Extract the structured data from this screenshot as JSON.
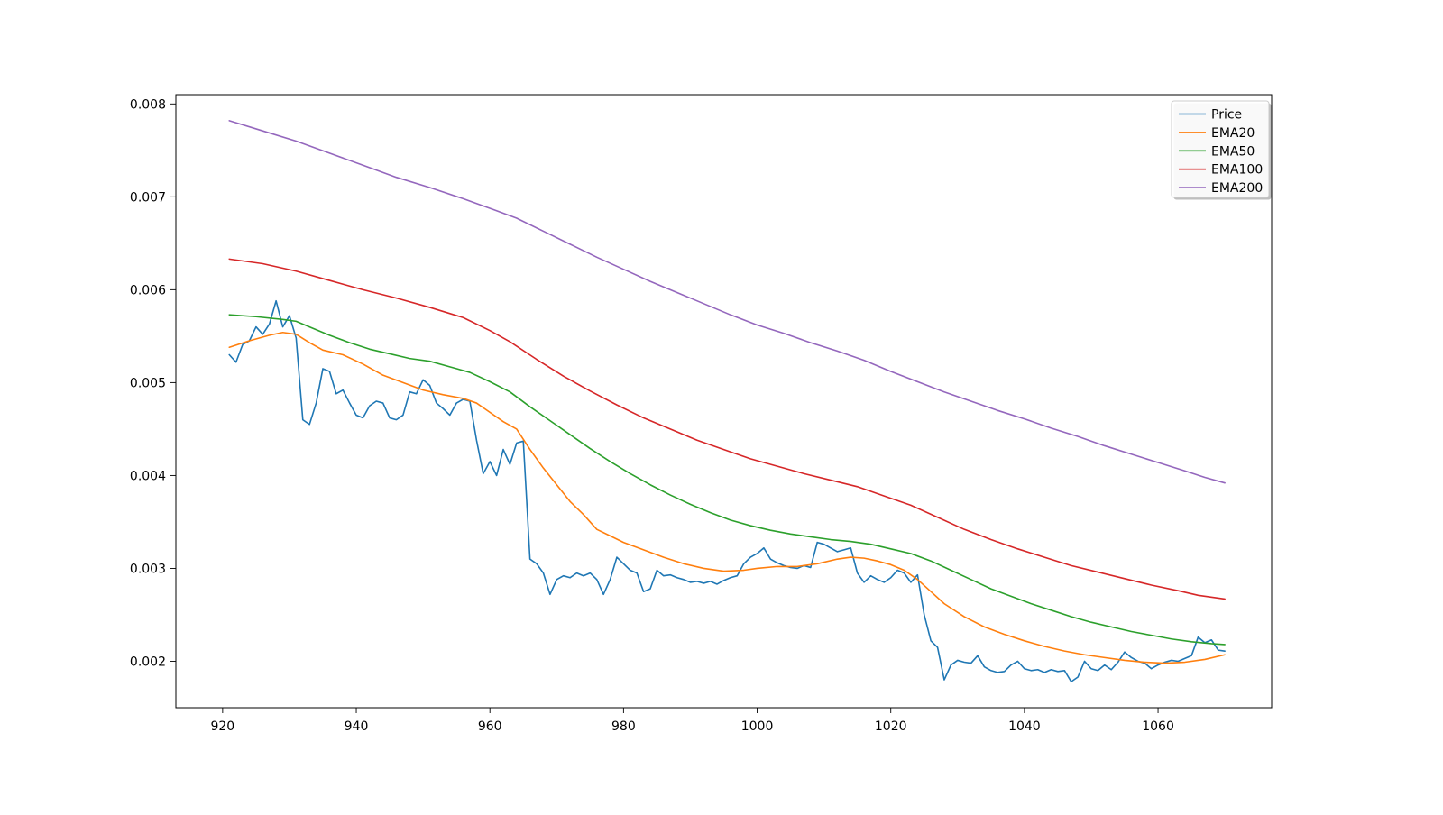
{
  "figure": {
    "background": "#ffffff"
  },
  "chart_data": {
    "type": "line",
    "title": "",
    "xlabel": "",
    "ylabel": "",
    "xlim": [
      913,
      1077
    ],
    "ylim": [
      0.0015,
      0.0081
    ],
    "xticks": [
      920,
      940,
      960,
      980,
      1000,
      1020,
      1040,
      1060
    ],
    "yticks": [
      0.002,
      0.003,
      0.004,
      0.005,
      0.006,
      0.007,
      0.008
    ],
    "y_tick_decimals": 3,
    "grid": false,
    "legend": {
      "position": "upper right",
      "labels": [
        "Price",
        "EMA20",
        "EMA50",
        "EMA100",
        "EMA200"
      ]
    },
    "axis_color": "#000000",
    "series": [
      {
        "name": "Price",
        "color": "#1f77b4",
        "x_start": 921,
        "x_step": 1,
        "y": [
          0.0053,
          0.00522,
          0.00541,
          0.00545,
          0.0056,
          0.00552,
          0.00563,
          0.00588,
          0.0056,
          0.00572,
          0.00548,
          0.0046,
          0.00455,
          0.00478,
          0.00515,
          0.00512,
          0.00488,
          0.00492,
          0.00478,
          0.00465,
          0.00462,
          0.00475,
          0.0048,
          0.00478,
          0.00462,
          0.0046,
          0.00465,
          0.0049,
          0.00488,
          0.00503,
          0.00497,
          0.00478,
          0.00472,
          0.00465,
          0.00478,
          0.00482,
          0.0048,
          0.00438,
          0.00402,
          0.00415,
          0.004,
          0.00428,
          0.00412,
          0.00435,
          0.00437,
          0.0031,
          0.00305,
          0.00295,
          0.00272,
          0.00288,
          0.00292,
          0.0029,
          0.00295,
          0.00292,
          0.00295,
          0.00288,
          0.00272,
          0.00288,
          0.00312,
          0.00305,
          0.00298,
          0.00295,
          0.00275,
          0.00278,
          0.00298,
          0.00292,
          0.00293,
          0.0029,
          0.00288,
          0.00285,
          0.00286,
          0.00284,
          0.00286,
          0.00283,
          0.00287,
          0.0029,
          0.00292,
          0.00305,
          0.00312,
          0.00316,
          0.00322,
          0.0031,
          0.00306,
          0.00303,
          0.00301,
          0.003,
          0.00303,
          0.00301,
          0.00328,
          0.00326,
          0.00322,
          0.00318,
          0.0032,
          0.00322,
          0.00295,
          0.00285,
          0.00292,
          0.00288,
          0.00285,
          0.0029,
          0.00298,
          0.00295,
          0.00285,
          0.00293,
          0.0025,
          0.00222,
          0.00215,
          0.0018,
          0.00196,
          0.00201,
          0.00199,
          0.00198,
          0.00206,
          0.00194,
          0.0019,
          0.00188,
          0.00189,
          0.00196,
          0.002,
          0.00192,
          0.0019,
          0.00191,
          0.00188,
          0.00191,
          0.00189,
          0.0019,
          0.00178,
          0.00183,
          0.002,
          0.00192,
          0.0019,
          0.00196,
          0.00191,
          0.00199,
          0.0021,
          0.00204,
          0.002,
          0.00198,
          0.00192,
          0.00196,
          0.00199,
          0.00201,
          0.002,
          0.00203,
          0.00206,
          0.00226,
          0.0022,
          0.00223,
          0.00212,
          0.00211
        ]
      },
      {
        "name": "EMA20",
        "color": "#ff7f0e",
        "x": [
          921,
          924,
          927,
          929,
          931,
          933,
          935,
          938,
          941,
          944,
          947,
          950,
          953,
          956,
          958,
          960,
          962,
          964,
          966,
          968,
          970,
          972,
          974,
          976,
          978,
          980,
          983,
          986,
          989,
          992,
          995,
          998,
          1000,
          1003,
          1006,
          1009,
          1012,
          1014,
          1016,
          1018,
          1020,
          1022,
          1024,
          1026,
          1028,
          1031,
          1034,
          1037,
          1040,
          1043,
          1046,
          1049,
          1052,
          1055,
          1058,
          1061,
          1064,
          1067,
          1070
        ],
        "y": [
          0.00538,
          0.00545,
          0.00551,
          0.00554,
          0.00552,
          0.00543,
          0.00535,
          0.0053,
          0.0052,
          0.00508,
          0.005,
          0.00492,
          0.00487,
          0.00483,
          0.00478,
          0.00468,
          0.00458,
          0.0045,
          0.00428,
          0.00408,
          0.0039,
          0.00372,
          0.00358,
          0.00342,
          0.00335,
          0.00328,
          0.0032,
          0.00312,
          0.00305,
          0.003,
          0.00297,
          0.00298,
          0.003,
          0.00302,
          0.00302,
          0.00305,
          0.0031,
          0.00312,
          0.00311,
          0.00308,
          0.00304,
          0.00298,
          0.00288,
          0.00275,
          0.00262,
          0.00248,
          0.00237,
          0.00229,
          0.00222,
          0.00216,
          0.00211,
          0.00207,
          0.00204,
          0.00201,
          0.00199,
          0.00198,
          0.00199,
          0.00202,
          0.00207
        ]
      },
      {
        "name": "EMA50",
        "color": "#2ca02c",
        "x": [
          921,
          925,
          929,
          931,
          933,
          936,
          939,
          942,
          945,
          948,
          951,
          954,
          957,
          960,
          963,
          966,
          969,
          972,
          975,
          978,
          981,
          984,
          987,
          990,
          993,
          996,
          999,
          1002,
          1005,
          1008,
          1011,
          1014,
          1017,
          1020,
          1023,
          1026,
          1029,
          1032,
          1035,
          1038,
          1041,
          1044,
          1047,
          1050,
          1053,
          1056,
          1059,
          1062,
          1065,
          1068,
          1070
        ],
        "y": [
          0.00573,
          0.00571,
          0.00568,
          0.00566,
          0.0056,
          0.00551,
          0.00543,
          0.00536,
          0.00531,
          0.00526,
          0.00523,
          0.00517,
          0.00511,
          0.00501,
          0.0049,
          0.00474,
          0.00459,
          0.00444,
          0.00429,
          0.00415,
          0.00402,
          0.0039,
          0.00379,
          0.00369,
          0.0036,
          0.00352,
          0.00346,
          0.00341,
          0.00337,
          0.00334,
          0.00331,
          0.00329,
          0.00326,
          0.00321,
          0.00316,
          0.00308,
          0.00298,
          0.00288,
          0.00278,
          0.0027,
          0.00262,
          0.00255,
          0.00248,
          0.00242,
          0.00237,
          0.00232,
          0.00228,
          0.00224,
          0.00221,
          0.00219,
          0.00218
        ]
      },
      {
        "name": "EMA100",
        "color": "#d62728",
        "x": [
          921,
          926,
          931,
          936,
          941,
          946,
          951,
          956,
          960,
          963,
          967,
          971,
          975,
          979,
          983,
          987,
          991,
          995,
          999,
          1003,
          1007,
          1011,
          1015,
          1019,
          1023,
          1027,
          1031,
          1035,
          1039,
          1043,
          1047,
          1051,
          1055,
          1059,
          1063,
          1066,
          1070
        ],
        "y": [
          0.00633,
          0.00628,
          0.0062,
          0.0061,
          0.006,
          0.00591,
          0.00581,
          0.0057,
          0.00556,
          0.00544,
          0.00525,
          0.00507,
          0.00491,
          0.00476,
          0.00462,
          0.0045,
          0.00438,
          0.00428,
          0.00418,
          0.0041,
          0.00402,
          0.00395,
          0.00388,
          0.00378,
          0.00368,
          0.00355,
          0.00342,
          0.00331,
          0.00321,
          0.00312,
          0.00303,
          0.00296,
          0.00289,
          0.00282,
          0.00276,
          0.00271,
          0.00267
        ]
      },
      {
        "name": "EMA200",
        "color": "#9467bd",
        "x": [
          921,
          926,
          931,
          936,
          941,
          946,
          951,
          956,
          961,
          964,
          968,
          972,
          976,
          980,
          984,
          988,
          992,
          996,
          1000,
          1004,
          1008,
          1012,
          1016,
          1020,
          1024,
          1028,
          1032,
          1036,
          1040,
          1044,
          1048,
          1052,
          1056,
          1060,
          1064,
          1067,
          1070
        ],
        "y": [
          0.00782,
          0.00771,
          0.0076,
          0.00747,
          0.00734,
          0.00721,
          0.0071,
          0.00698,
          0.00685,
          0.00677,
          0.00663,
          0.00649,
          0.00635,
          0.00622,
          0.00609,
          0.00597,
          0.00585,
          0.00573,
          0.00562,
          0.00553,
          0.00543,
          0.00534,
          0.00524,
          0.00512,
          0.00501,
          0.0049,
          0.0048,
          0.0047,
          0.00461,
          0.00451,
          0.00442,
          0.00432,
          0.00423,
          0.00414,
          0.00405,
          0.00398,
          0.00392
        ]
      }
    ]
  }
}
